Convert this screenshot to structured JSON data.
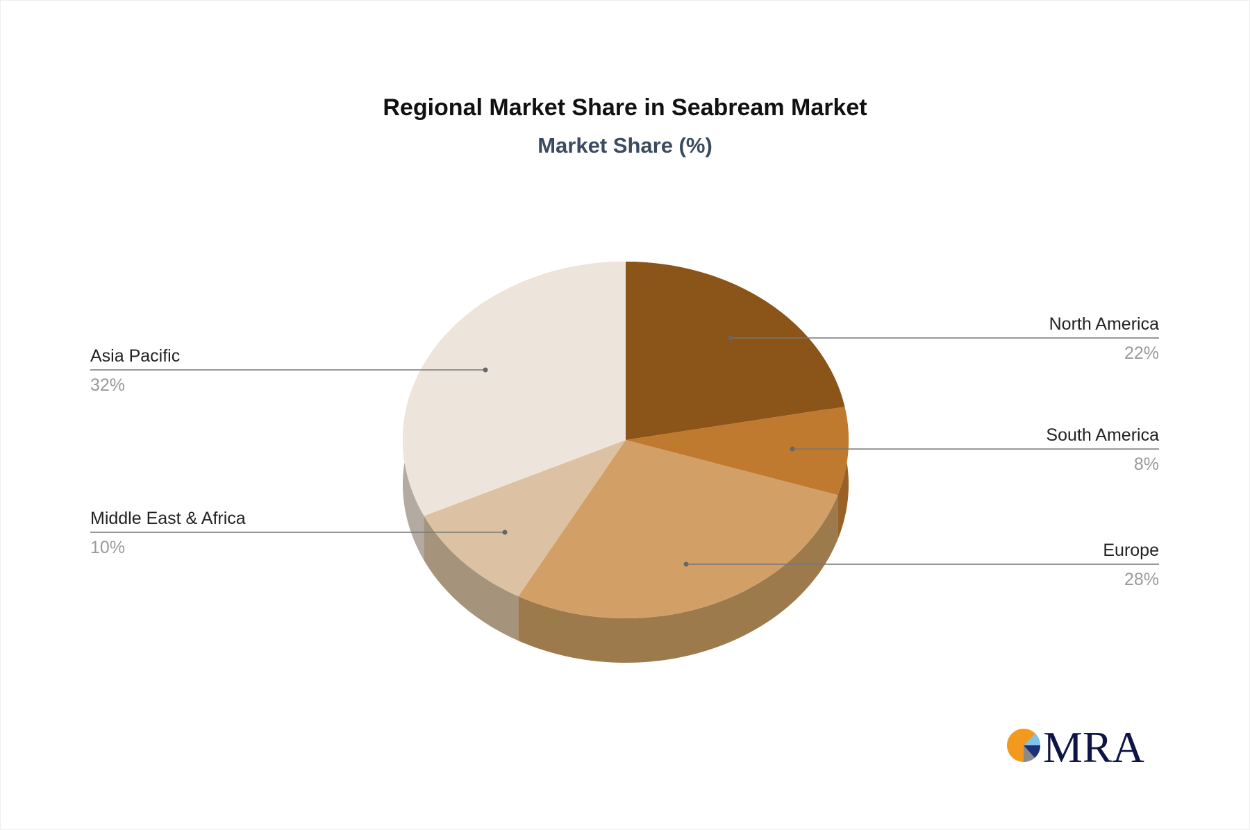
{
  "chart_data": {
    "type": "pie",
    "title": "Regional Market Share in Seabream Market",
    "subtitle": "Market Share (%)",
    "slices": [
      {
        "label": "North America",
        "value": 22,
        "pct_label": "22%",
        "color": "#8B5418",
        "side_color": "#6E4213"
      },
      {
        "label": "South America",
        "value": 8,
        "pct_label": "8%",
        "color": "#C07A30",
        "side_color": "#996126"
      },
      {
        "label": "Europe",
        "value": 28,
        "pct_label": "28%",
        "color": "#D2A067",
        "side_color": "#9D7A4C"
      },
      {
        "label": "Middle East & Africa",
        "value": 10,
        "pct_label": "10%",
        "color": "#DCC2A2",
        "side_color": "#A6937B"
      },
      {
        "label": "Asia Pacific",
        "value": 32,
        "pct_label": "32%",
        "color": "#EDE4DB",
        "side_color": "#B3AAA1"
      }
    ],
    "legend": "callout-labels"
  },
  "logo": {
    "text": "MRA",
    "colors": [
      "#F39A1E",
      "#7FC3EA",
      "#1B2F7A",
      "#8A8A8A"
    ]
  }
}
